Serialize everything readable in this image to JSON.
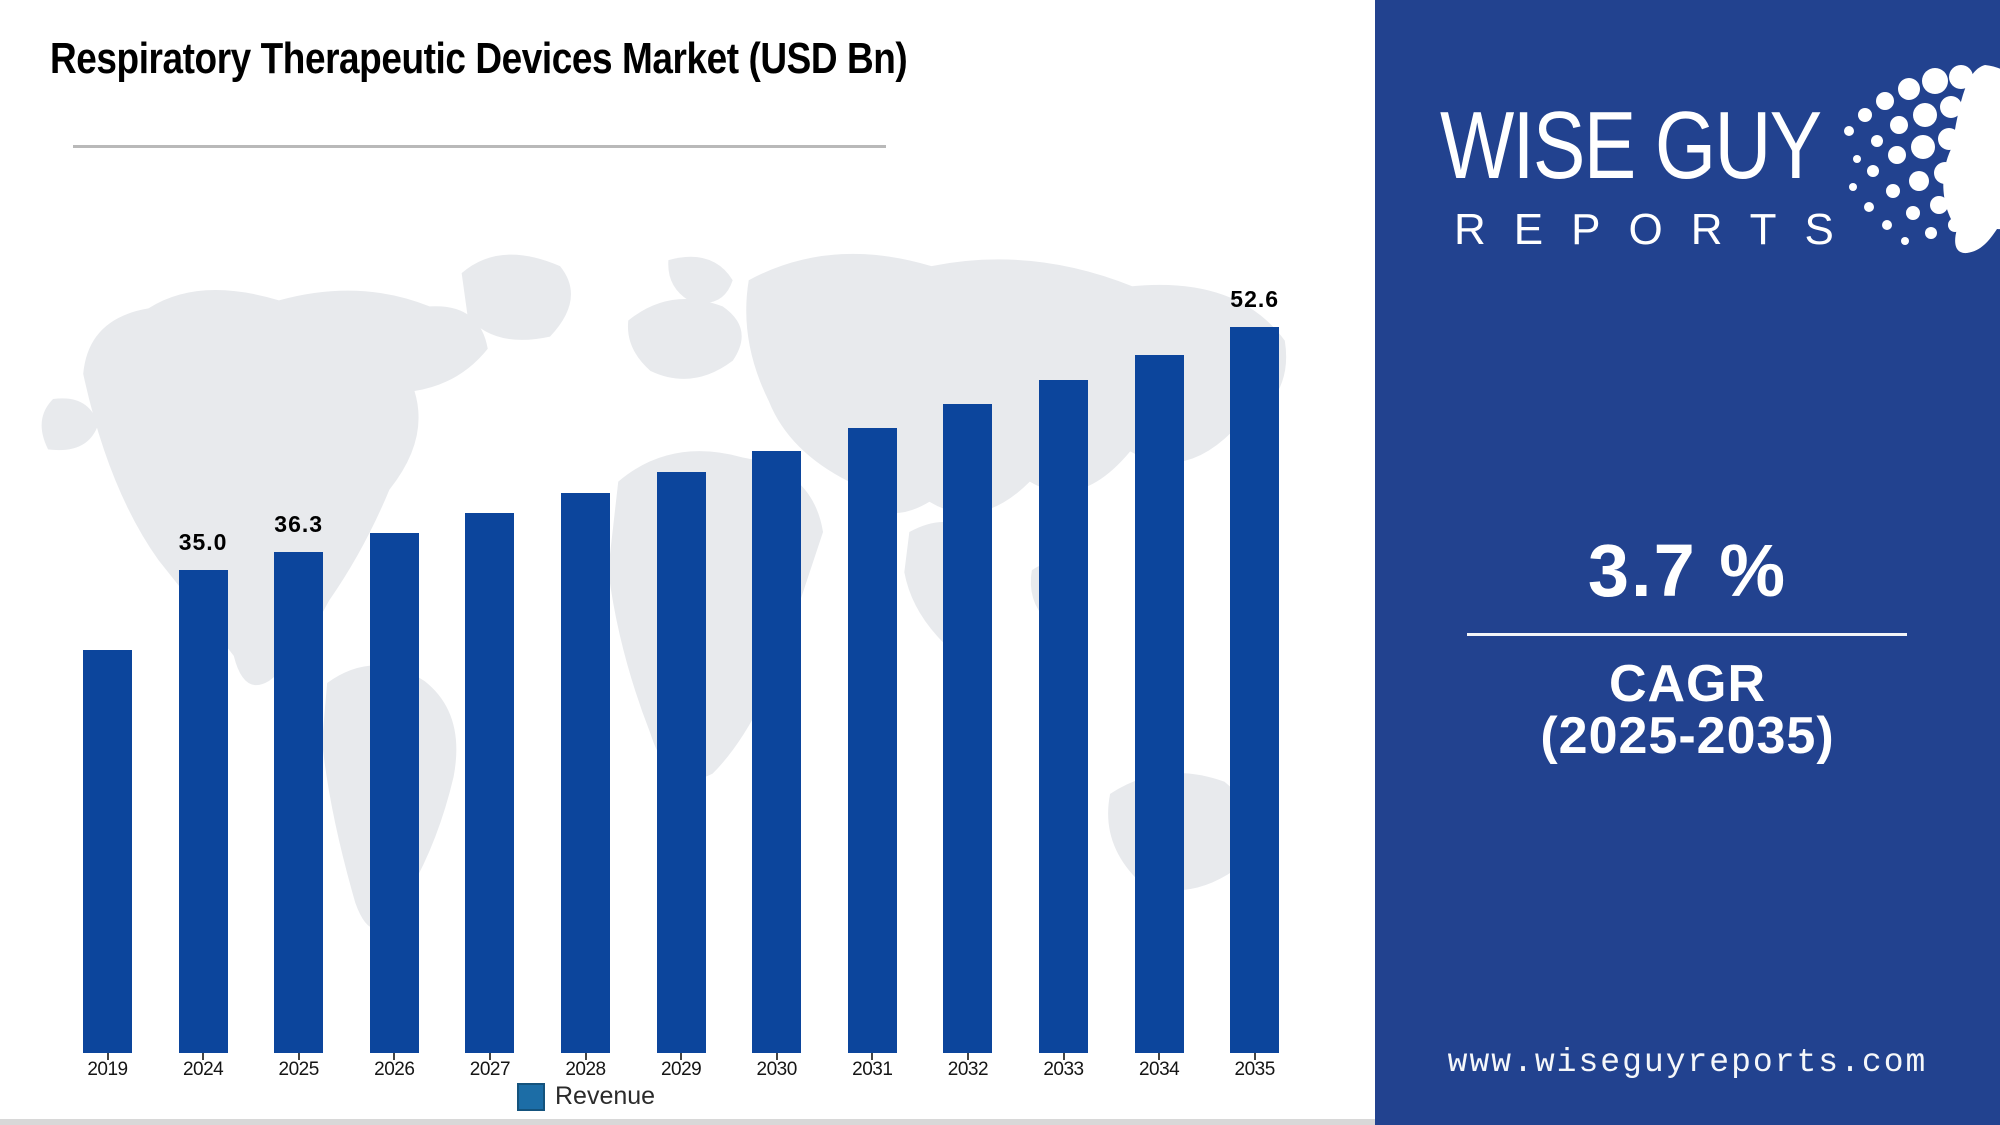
{
  "title": "Respiratory Therapeutic Devices Market (USD Bn)",
  "chart_data": {
    "type": "bar",
    "title": "Respiratory Therapeutic Devices Market (USD Bn)",
    "categories": [
      "2019",
      "2024",
      "2025",
      "2026",
      "2027",
      "2028",
      "2029",
      "2030",
      "2031",
      "2032",
      "2033",
      "2034",
      "2035"
    ],
    "values": [
      29.2,
      35.0,
      36.3,
      37.7,
      39.1,
      40.6,
      42.1,
      43.6,
      45.3,
      47.0,
      48.8,
      50.6,
      52.6
    ],
    "value_labels": [
      "",
      "35.0",
      "36.3",
      "",
      "",
      "",
      "",
      "",
      "",
      "",
      "",
      "",
      "52.6"
    ],
    "series": [
      {
        "name": "Revenue",
        "color": "#0c459c"
      }
    ],
    "xlabel": "",
    "ylabel": "",
    "ylim": [
      0,
      58
    ],
    "grid": false,
    "legend_position": "bottom",
    "background_watermark": "world-map"
  },
  "legend": {
    "label": "Revenue",
    "swatch_color": "#1c6da6",
    "swatch_border": "#14537d"
  },
  "sidebar": {
    "background": "#22428f",
    "brand_line1": "WISE GUY",
    "brand_line2": "REPORTS",
    "cagr_value": "3.7 %",
    "cagr_label": "CAGR",
    "cagr_range": "(2025-2035)",
    "website": "www.wiseguyreports.com"
  }
}
